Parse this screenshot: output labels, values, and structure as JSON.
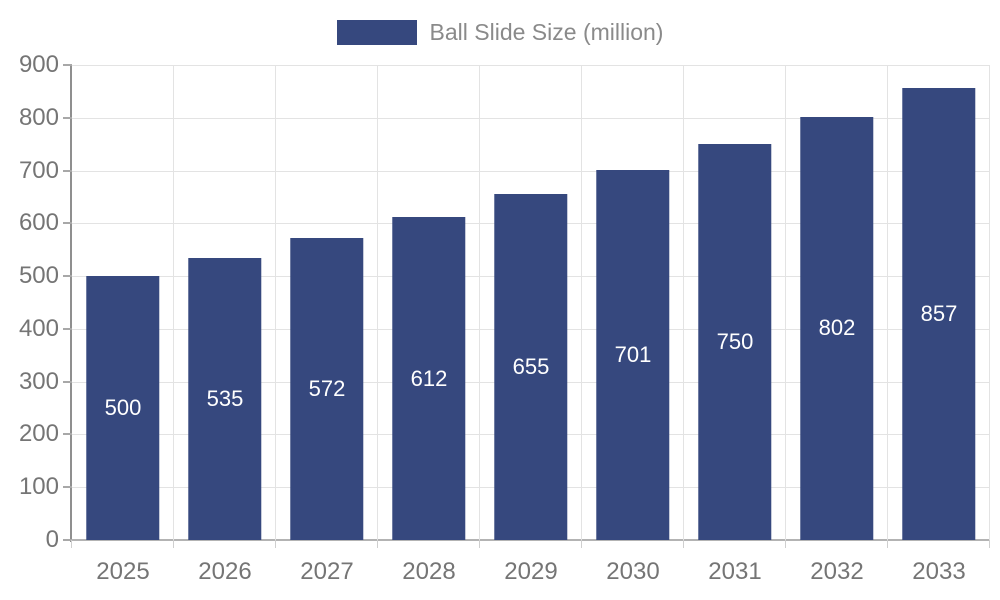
{
  "legend": {
    "label": "Ball Slide Size (million)"
  },
  "chart_data": {
    "type": "bar",
    "title": "Ball Slide Size (million)",
    "series_name": "Ball Slide Size (million)",
    "categories": [
      "2025",
      "2026",
      "2027",
      "2028",
      "2029",
      "2030",
      "2031",
      "2032",
      "2033"
    ],
    "values": [
      500,
      535,
      572,
      612,
      655,
      701,
      750,
      802,
      857
    ],
    "yticks": [
      "0",
      "100",
      "200",
      "300",
      "400",
      "500",
      "600",
      "700",
      "800",
      "900"
    ],
    "ylim": [
      0,
      900
    ],
    "ytick_step": 100,
    "grid": true,
    "legend_position": "top-center",
    "xlabel": "",
    "ylabel": "",
    "colors": {
      "bar": "#36487e",
      "bar_value_text": "#ffffff",
      "grid": "#e3e3e3",
      "axis_text": "#757575",
      "legend_text": "#8a8a8a",
      "y_axis_line": "#8f8f8f",
      "x_axis_line": "#b3b3b3",
      "y_tick": "#a8a8a8",
      "x_tick": "#cfcfcf"
    }
  }
}
